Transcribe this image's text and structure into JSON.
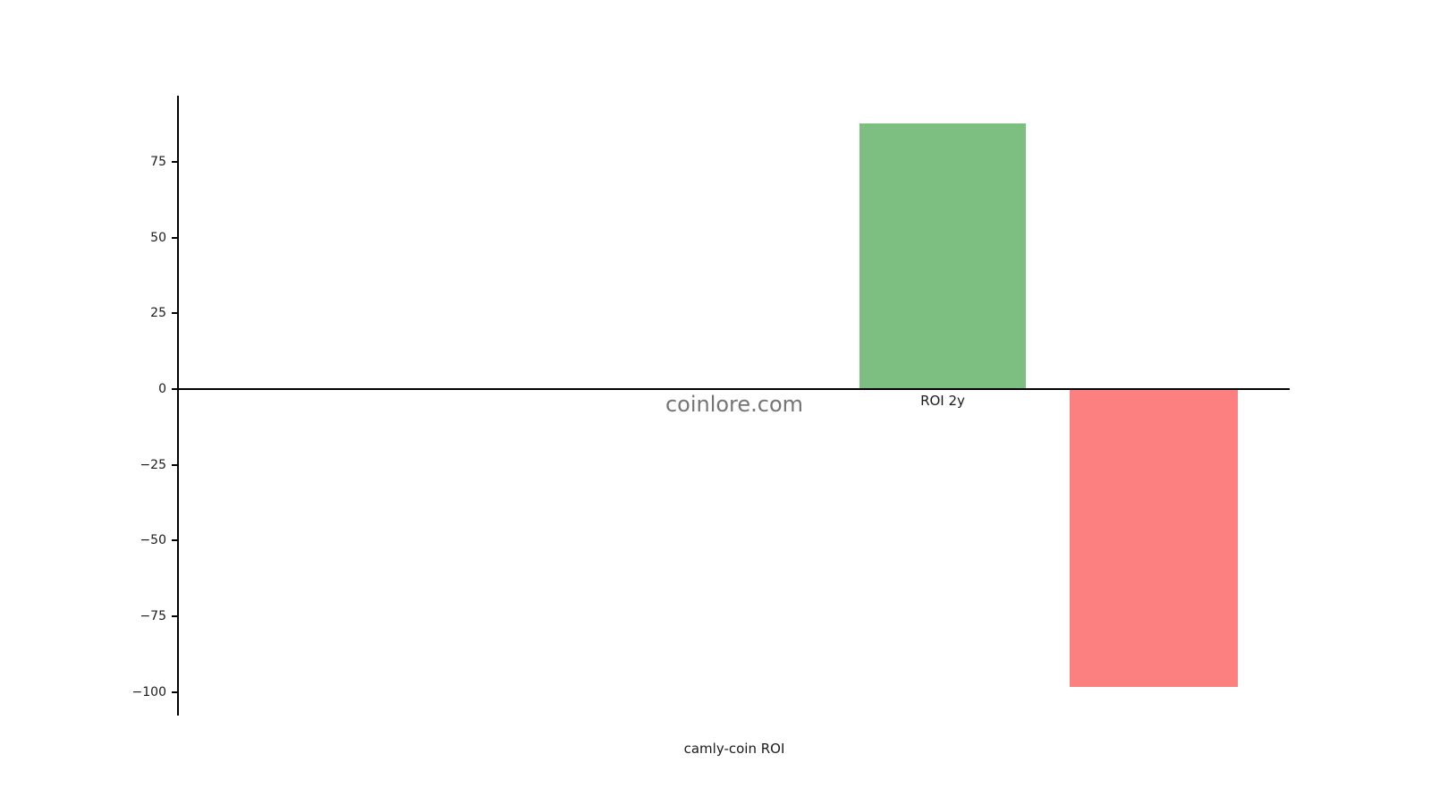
{
  "watermark": "coinlore.com",
  "footer_label": "camly-coin ROI",
  "colors": {
    "positive_bar": "#7dbf80",
    "negative_bar": "#fd8080",
    "axis": "#000000",
    "tick_text": "#1a1a1a",
    "watermark_text": "#757575",
    "background": "#ffffff"
  },
  "chart_data": {
    "type": "bar",
    "title": "",
    "xlabel": "camly-coin ROI",
    "ylabel": "",
    "categories": [
      "ROI 2y",
      ""
    ],
    "values": [
      87.4,
      -98.5
    ],
    "bar_colors": [
      "#7dbf80",
      "#fd8080"
    ],
    "ylim": [
      -108,
      96.5
    ],
    "yticks": [
      75,
      50,
      25,
      0,
      -25,
      -50,
      -75,
      -100
    ],
    "ytick_labels": [
      "75",
      "50",
      "25",
      "0",
      "−25",
      "−50",
      "−75",
      "−100"
    ],
    "grid": false,
    "legend_position": "none",
    "annotations": [
      "coinlore.com"
    ]
  }
}
